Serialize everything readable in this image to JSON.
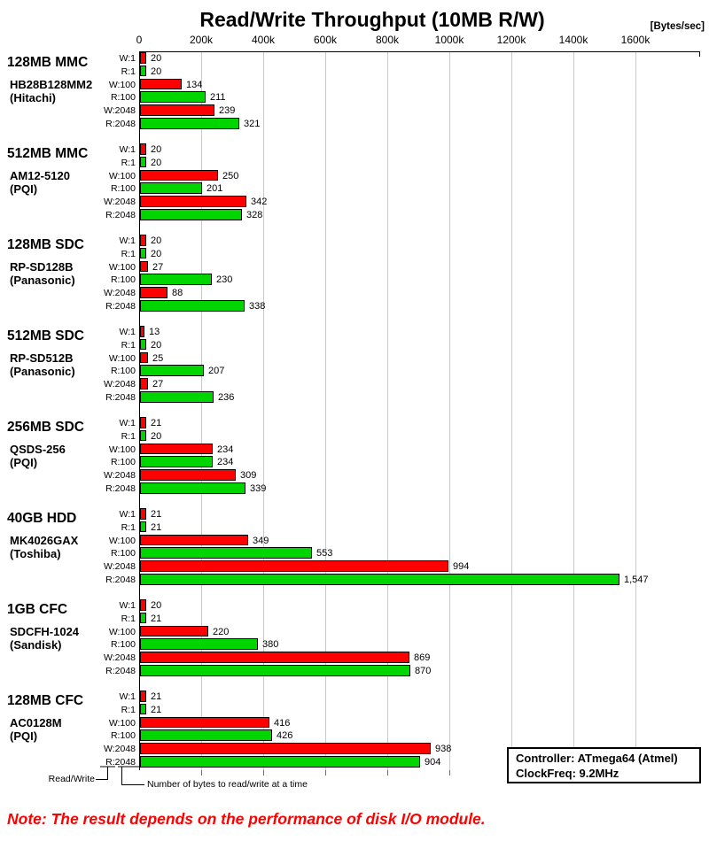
{
  "chart_data": {
    "type": "bar",
    "orientation": "horizontal",
    "title": "Read/Write Throughput (10MB R/W)",
    "unit_label": "[Bytes/sec]",
    "x_axis": {
      "tick_labels": [
        "0",
        "200k",
        "400k",
        "600k",
        "800k",
        "1000k",
        "1200k",
        "1400k",
        "1600k"
      ],
      "tick_values_k": [
        0,
        200,
        400,
        600,
        800,
        1000,
        1200,
        1400,
        1600
      ],
      "axis_max_k": 1800,
      "grid": true
    },
    "bar_categories": [
      "W:1",
      "R:1",
      "W:100",
      "R:100",
      "W:2048",
      "R:2048"
    ],
    "series_colors": {
      "write": "#ff0000",
      "read": "#00d500"
    },
    "gridline_color": "#c9c9c9",
    "groups": [
      {
        "name": "128MB MMC",
        "model": "HB28B128MM2",
        "brand": "(Hitachi)",
        "values_k": [
          20,
          20,
          134,
          211,
          239,
          321
        ],
        "value_labels": [
          "20",
          "20",
          "134",
          "211",
          "239",
          "321"
        ]
      },
      {
        "name": "512MB MMC",
        "model": "AM12-5120",
        "brand": "(PQI)",
        "values_k": [
          20,
          20,
          250,
          201,
          342,
          328
        ],
        "value_labels": [
          "20",
          "20",
          "250",
          "201",
          "342",
          "328"
        ]
      },
      {
        "name": "128MB SDC",
        "model": "RP-SD128B",
        "brand": "(Panasonic)",
        "values_k": [
          20,
          20,
          27,
          230,
          88,
          338
        ],
        "value_labels": [
          "20",
          "20",
          "27",
          "230",
          "88",
          "338"
        ]
      },
      {
        "name": "512MB SDC",
        "model": "RP-SD512B",
        "brand": "(Panasonic)",
        "values_k": [
          13,
          20,
          25,
          207,
          27,
          236
        ],
        "value_labels": [
          "13",
          "20",
          "25",
          "207",
          "27",
          "236"
        ]
      },
      {
        "name": "256MB SDC",
        "model": "QSDS-256",
        "brand": "(PQI)",
        "values_k": [
          21,
          20,
          234,
          234,
          309,
          339
        ],
        "value_labels": [
          "21",
          "20",
          "234",
          "234",
          "309",
          "339"
        ]
      },
      {
        "name": "40GB HDD",
        "model": "MK4026GAX",
        "brand": "(Toshiba)",
        "values_k": [
          21,
          21,
          349,
          553,
          994,
          1547
        ],
        "value_labels": [
          "21",
          "21",
          "349",
          "553",
          "994",
          "1,547"
        ]
      },
      {
        "name": "1GB CFC",
        "model": "SDCFH-1024",
        "brand": "(Sandisk)",
        "values_k": [
          20,
          21,
          220,
          380,
          869,
          870
        ],
        "value_labels": [
          "20",
          "21",
          "220",
          "380",
          "869",
          "870"
        ]
      },
      {
        "name": "128MB CFC",
        "model": "AC0128M",
        "brand": "(PQI)",
        "values_k": [
          21,
          21,
          416,
          426,
          938,
          904
        ],
        "value_labels": [
          "21",
          "21",
          "416",
          "426",
          "938",
          "904"
        ]
      }
    ],
    "legend": {
      "read_write_label": "Read/Write",
      "bytes_label": "Number of bytes to read/write at a time"
    },
    "info_box": {
      "controller": "Controller: ATmega64 (Atmel)",
      "clock": "ClockFreq: 9.2MHz"
    },
    "note": "Note: The result depends on the performance of disk I/O module."
  }
}
